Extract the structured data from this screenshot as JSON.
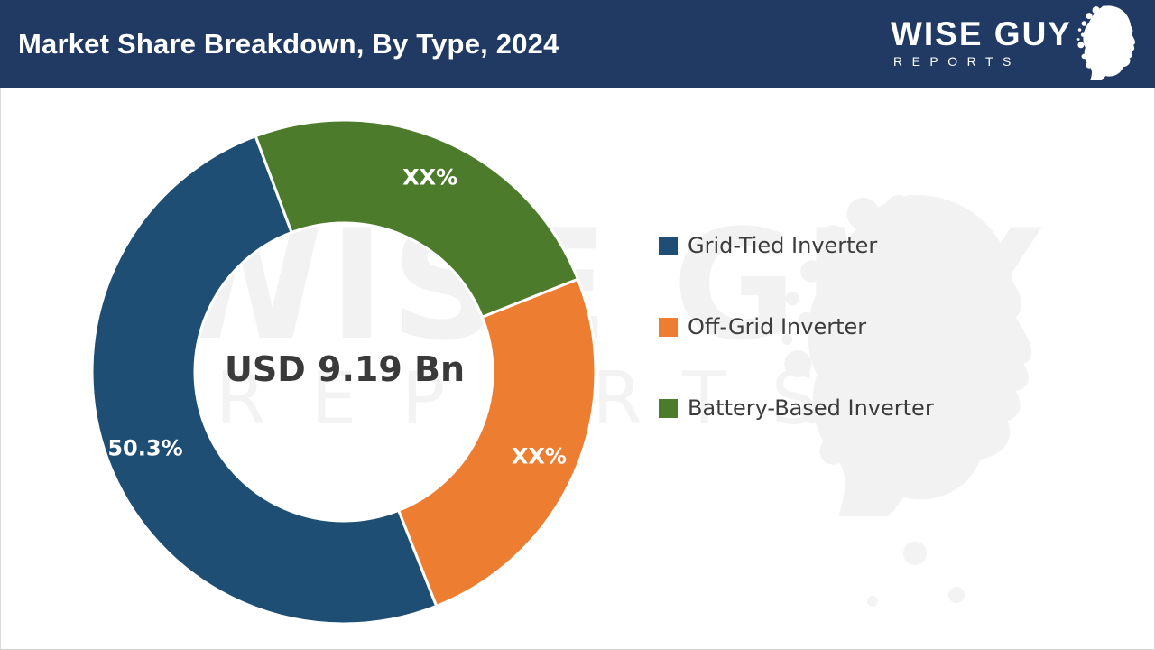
{
  "header": {
    "title": "Market Share Breakdown, By Type, 2024"
  },
  "logo": {
    "name_line": "WISE GUY",
    "sub_line": "REPORTS"
  },
  "watermark": {
    "line1": "WISE GUY",
    "line2": "REPORTS"
  },
  "chart_data": {
    "type": "donut",
    "title": "Market Share Breakdown, By Type, 2024",
    "center_label": "USD 9.19 Bn",
    "start_angle_deg": 158.4,
    "draw_order": [
      0,
      2,
      1
    ],
    "label_radius_ratio": 0.845,
    "legend_position": "right",
    "segments": [
      {
        "name": "Grid-Tied Inverter",
        "value": 50.3,
        "display": "50.3%",
        "color": "#1F4E75"
      },
      {
        "name": "Off-Grid Inverter",
        "value": 25.0,
        "display": "XX%",
        "color": "#ED7D31"
      },
      {
        "name": "Battery-Based Inverter",
        "value": 24.7,
        "display": "XX%",
        "color": "#4C7B2B"
      }
    ]
  },
  "colors": {
    "header_bg": "#213A64",
    "center_text": "#3A3A3A",
    "legend_text": "#3C3C3C",
    "watermark": "#F2F2F2",
    "slice_divider": "#FFFFFF"
  }
}
